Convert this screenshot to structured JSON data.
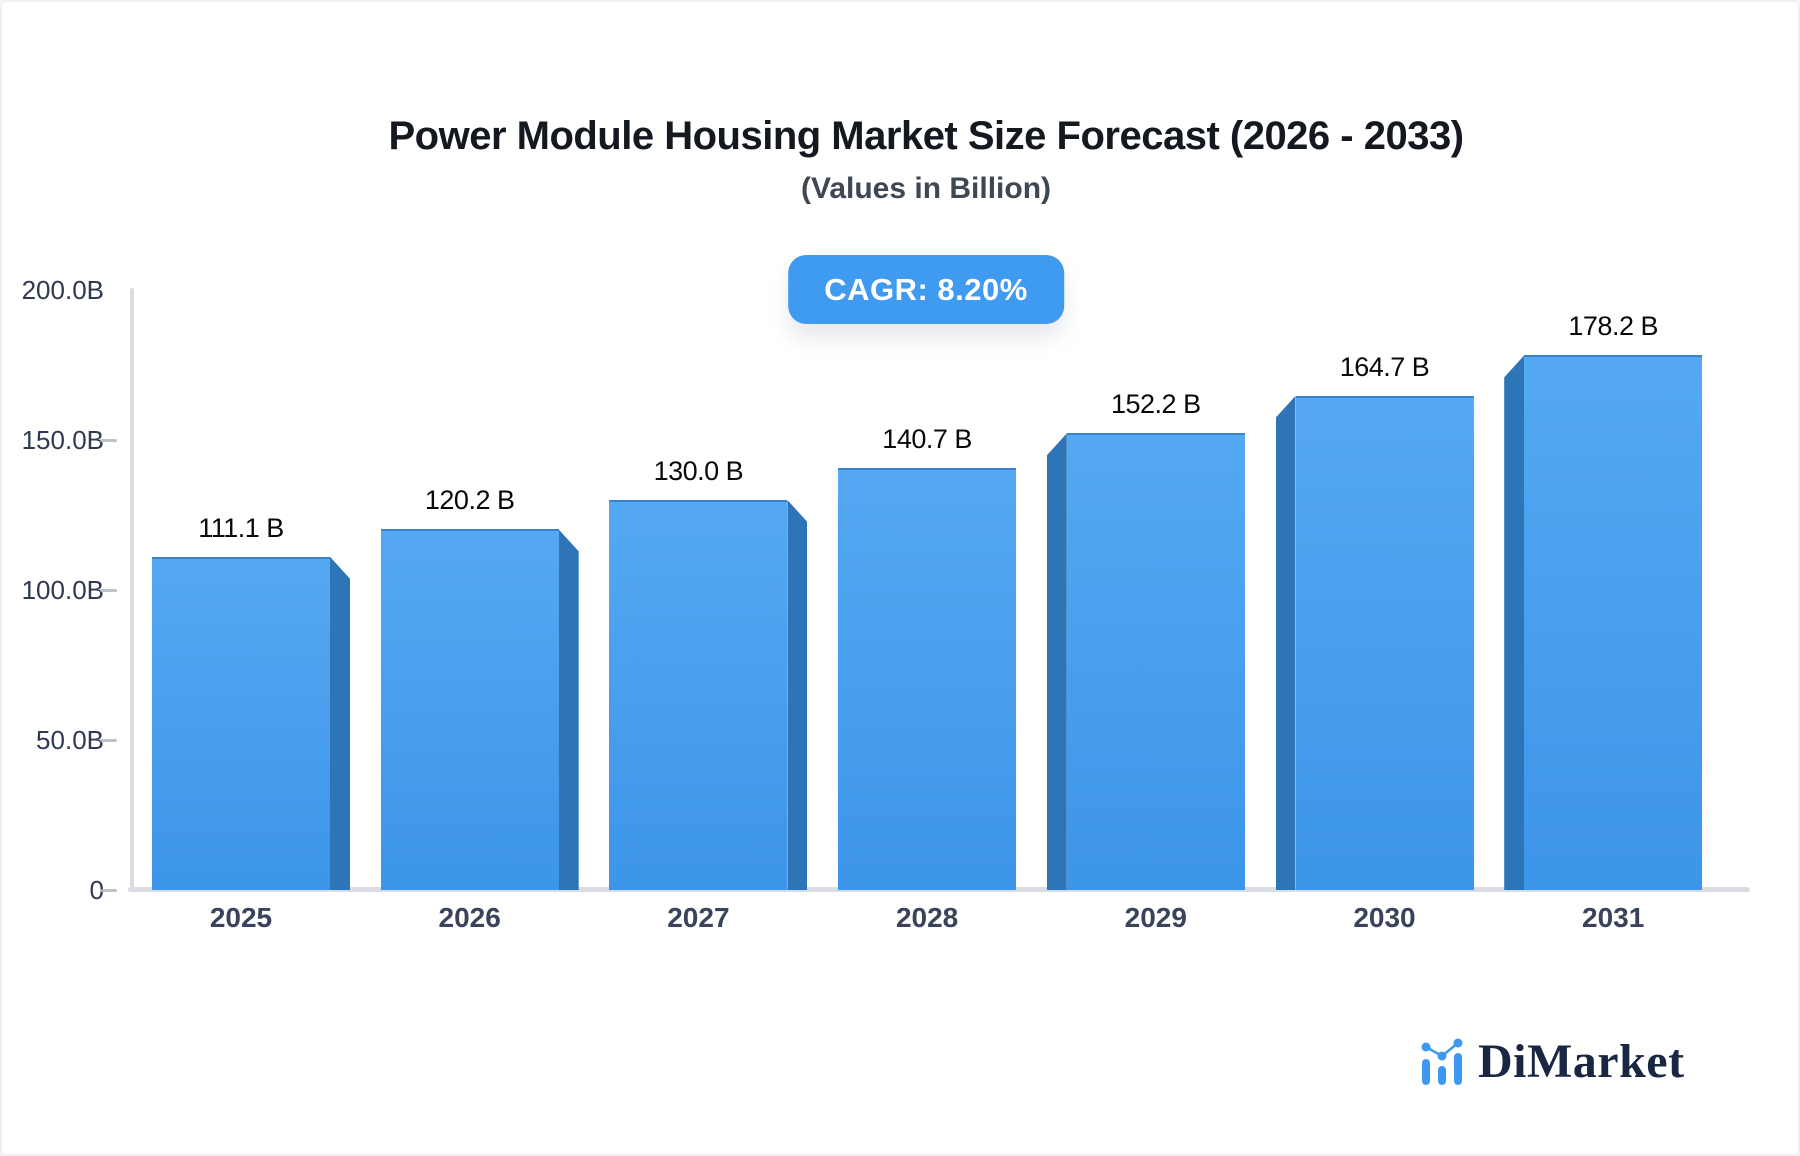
{
  "header": {
    "title": "Power Module Housing Market Size Forecast (2026 - 2033)",
    "subtitle": "(Values in Billion)",
    "cagr_badge": "CAGR: 8.20%"
  },
  "chart_data": {
    "type": "bar",
    "title": "Power Module Housing Market Size Forecast (2026 - 2033)",
    "subtitle": "(Values in Billion)",
    "cagr_text": "CAGR: 8.20%",
    "cagr_percent": 8.2,
    "categories": [
      "2025",
      "2026",
      "2027",
      "2028",
      "2029",
      "2030",
      "2031"
    ],
    "values": [
      111.1,
      120.2,
      130.0,
      140.7,
      152.2,
      164.7,
      178.2
    ],
    "value_labels": [
      "111.1 B",
      "120.2 B",
      "130.0 B",
      "140.7 B",
      "152.2 B",
      "164.7 B",
      "178.2 B"
    ],
    "xlabel": "",
    "ylabel": "",
    "ylim": [
      0,
      200
    ],
    "y_ticks": [
      {
        "label": "200.0B",
        "value": 200
      },
      {
        "label": "150.0B",
        "value": 150
      },
      {
        "label": "100.0B",
        "value": 100
      },
      {
        "label": "50.0B",
        "value": 50
      },
      {
        "label": "0",
        "value": 0
      }
    ],
    "grid": false,
    "legend": false,
    "bar_style": "3d-extruded, extrusion faces away from chart center"
  },
  "branding": {
    "name": "DiMarket",
    "icon": "mini-bar-line-chart-icon"
  },
  "colors": {
    "badge_bg": "#3f9bf0",
    "bar_face_top": "#55a9f2",
    "bar_face_bottom": "#3d95e9",
    "bar_side": "#2e75b8",
    "axis": "#d9dce2",
    "brand_blue": "#3e97f0",
    "brand_navy": "#1a2742"
  }
}
